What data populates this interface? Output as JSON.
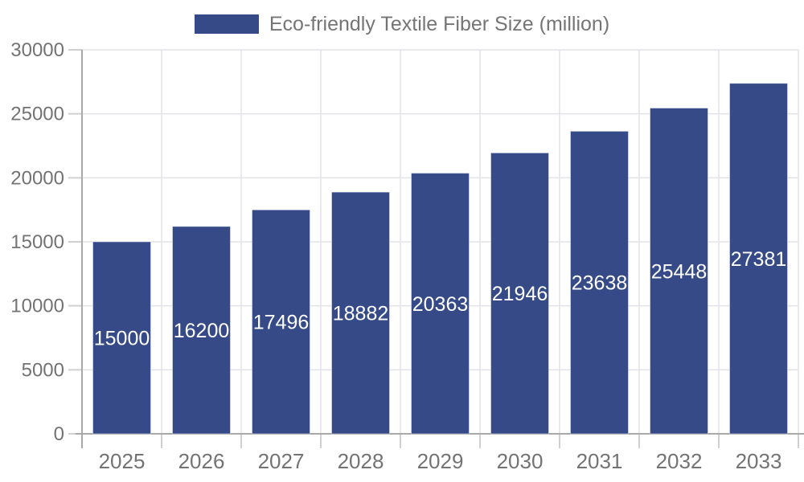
{
  "legend": {
    "label": "Eco-friendly Textile Fiber Size (million)"
  },
  "chart_data": {
    "type": "bar",
    "title": "Eco-friendly Textile Fiber Size (million)",
    "categories": [
      "2025",
      "2026",
      "2027",
      "2028",
      "2029",
      "2030",
      "2031",
      "2032",
      "2033"
    ],
    "values": [
      15000,
      16200,
      17496,
      18882,
      20363,
      21946,
      23638,
      25448,
      27381
    ],
    "xlabel": "",
    "ylabel": "",
    "ylim": [
      0,
      30000
    ],
    "ytick_step": 5000,
    "ytick_labels": [
      "0",
      "5000",
      "10000",
      "15000",
      "20000",
      "25000",
      "30000"
    ],
    "grid": true,
    "legend_position": "top-center",
    "colors": {
      "bar_fill": "#364a88",
      "bar_edge": "rgba(255,255,255,0.45)",
      "bar_value_label": "#ffffff",
      "axis_line": "#a9a9a9",
      "tick_mark": "#d0d0d0",
      "grid_line": "#e2e2e8",
      "axis_text": "#737373",
      "legend_text": "#757575"
    }
  }
}
